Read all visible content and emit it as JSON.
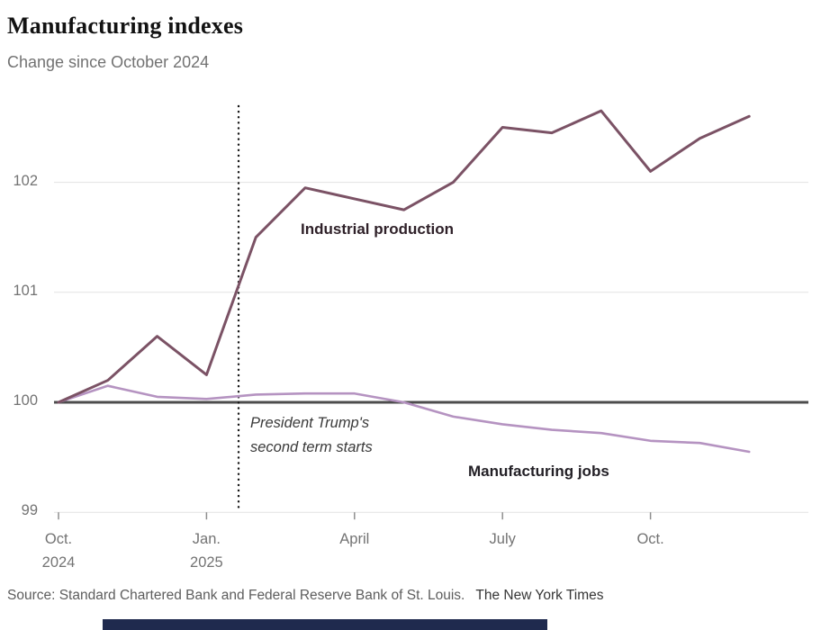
{
  "header": {
    "title": "Manufacturing indexes",
    "subtitle": "Change since October 2024"
  },
  "chart_data": {
    "type": "line",
    "x": [
      "Oct. 2024",
      "Nov.",
      "Dec.",
      "Jan. 2025",
      "Feb.",
      "Mar.",
      "Apr.",
      "May",
      "Jun.",
      "Jul.",
      "Aug.",
      "Sep.",
      "Oct.",
      "Nov.",
      "Dec."
    ],
    "series": [
      {
        "name": "Industrial production",
        "color": "#7b5265",
        "values": [
          100,
          100.2,
          100.6,
          100.25,
          101.5,
          101.95,
          101.85,
          101.75,
          102.0,
          102.5,
          102.45,
          102.65,
          102.1,
          102.4,
          102.6
        ]
      },
      {
        "name": "Manufacturing jobs",
        "color": "#b593c1",
        "values": [
          100,
          100.15,
          100.05,
          100.03,
          100.07,
          100.08,
          100.08,
          100.0,
          99.87,
          99.8,
          99.75,
          99.72,
          99.65,
          99.63,
          99.55
        ]
      }
    ],
    "ylim": [
      99,
      102.8
    ],
    "y_ticks": [
      {
        "label": "99",
        "value": 99
      },
      {
        "label": "100",
        "value": 100
      },
      {
        "label": "101",
        "value": 101
      },
      {
        "label": "102",
        "value": 102
      }
    ],
    "x_ticks": [
      {
        "label": "Oct.",
        "sublabel": "2024",
        "month_index": 0
      },
      {
        "label": "Jan.",
        "sublabel": "2025",
        "month_index": 3
      },
      {
        "label": "April",
        "month_index": 6
      },
      {
        "label": "July",
        "month_index": 9
      },
      {
        "label": "Oct.",
        "month_index": 12
      }
    ],
    "baseline_value": 100,
    "event_line": {
      "month_index": 3.65,
      "label_line1": "President Trump's",
      "label_line2": "second term starts"
    },
    "grid": true,
    "legend_position": "inline-labels"
  },
  "footer": {
    "source": "Source: Standard Chartered Bank and Federal Reserve Bank of St. Louis.",
    "credit": "The New York Times"
  },
  "colors": {
    "industrial_line": "#7b5265",
    "jobs_line": "#b593c1",
    "baseline": "#4d4d4d",
    "grid": "#e2e2e2",
    "tick": "#8f8f8f",
    "event_line": "#141414",
    "bottom_bar": "#1f2a4e"
  }
}
